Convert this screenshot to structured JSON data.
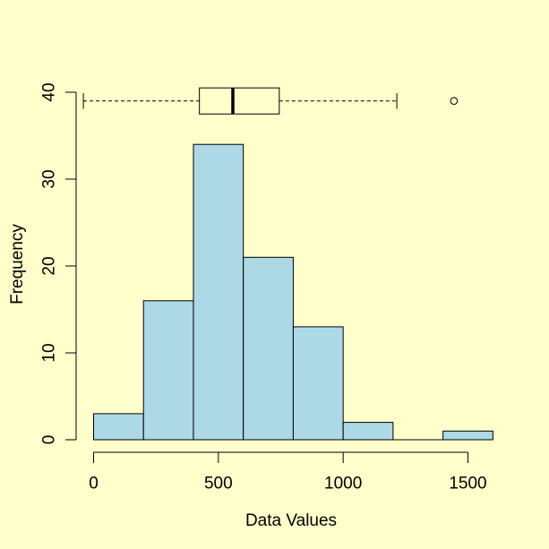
{
  "figure": {
    "background_color": "#FFFFCC",
    "bar_fill_color": "#ADD8E6",
    "stroke_color": "#000000",
    "text_color": "#000000"
  },
  "chart_data": {
    "type": "histogram",
    "title": "",
    "xlabel": "Data Values",
    "ylabel": "Frequency",
    "bin_edges": [
      0,
      200,
      400,
      600,
      800,
      1000,
      1200,
      1400,
      1600
    ],
    "frequencies": [
      3,
      16,
      34,
      21,
      13,
      2,
      0,
      1
    ],
    "x_ticks": [
      "0",
      "500",
      "1000",
      "1500"
    ],
    "x_tick_values": [
      0,
      500,
      1000,
      1500
    ],
    "y_ticks": [
      "0",
      "10",
      "20",
      "30",
      "40"
    ],
    "y_tick_values": [
      0,
      10,
      20,
      30,
      40
    ],
    "xlim": [
      0,
      1500
    ],
    "ylim": [
      0,
      40
    ],
    "grid": false,
    "legend": false,
    "overlay_boxplot": {
      "orientation": "horizontal",
      "position": 39,
      "box_half_height": 1.5,
      "cap_half_height": 0.9,
      "whisker_low": -41,
      "q1": 424,
      "median": 558,
      "q3": 744,
      "whisker_high": 1215,
      "outliers": [
        1444
      ],
      "whisker_style": "dashed"
    }
  }
}
